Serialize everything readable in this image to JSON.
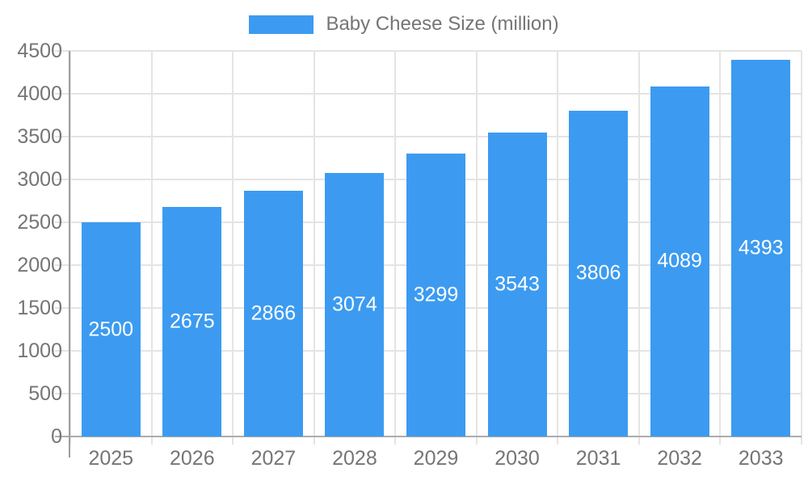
{
  "chart": {
    "legend_label": "Baby Cheese Size (million)"
  },
  "chart_data": {
    "type": "bar",
    "title": "Baby Cheese Size (million)",
    "categories": [
      "2025",
      "2026",
      "2027",
      "2028",
      "2029",
      "2030",
      "2031",
      "2032",
      "2033"
    ],
    "values": [
      2500,
      2675,
      2866,
      3074,
      3299,
      3543,
      3806,
      4089,
      4393
    ],
    "xlabel": "",
    "ylabel": "",
    "ylim": [
      0,
      4500
    ],
    "ytick_step": 500,
    "grid": true,
    "legend_position": "top",
    "bar_color": "#3C9BF0",
    "value_label_color": "#FFFFFF",
    "axis_text_color": "#757575",
    "gridline_color": "#E4E4E4",
    "y_axis_line_color": "#9E9E9E",
    "x_axis_line_color": "#ACACAC"
  }
}
